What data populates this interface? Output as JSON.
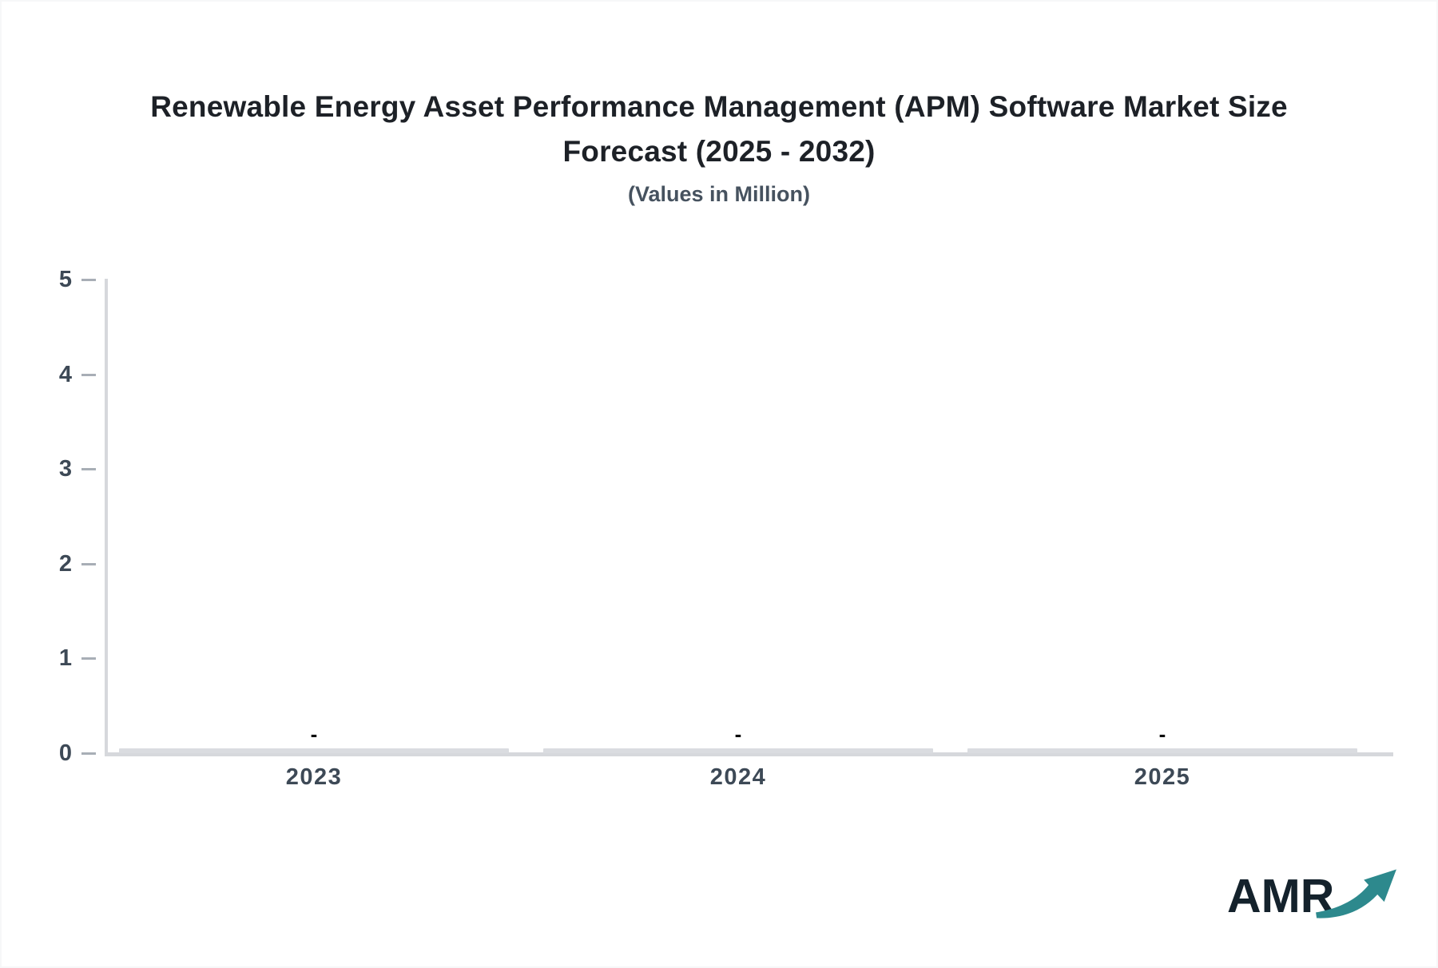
{
  "header": {
    "title_line1": "Renewable Energy Asset Performance Management (APM) Software Market Size",
    "title_line2": "Forecast (2025 - 2032)",
    "subtitle": "(Values in Million)"
  },
  "chart_data": {
    "type": "bar",
    "title": "Renewable Energy Asset Performance Management (APM) Software Market Size Forecast (2025 - 2032)",
    "subtitle": "(Values in Million)",
    "categories": [
      "2023",
      "2024",
      "2025"
    ],
    "values": [
      null,
      null,
      null
    ],
    "value_labels": [
      "-",
      "-",
      "-"
    ],
    "ylim": [
      0,
      5
    ],
    "yticks": [
      0,
      1,
      2,
      3,
      4,
      5
    ],
    "grid": false,
    "legend": "none",
    "bar_color": "#dadce0",
    "axis_color": "#d6d8dc",
    "tick_color": "#a8aeb6",
    "axis_label_color": "#3d4956"
  },
  "logo": {
    "text": "AMR",
    "arrow_icon": "growth-arrow-icon",
    "text_color": "#14222c",
    "arrow_color": "#2d898d"
  }
}
